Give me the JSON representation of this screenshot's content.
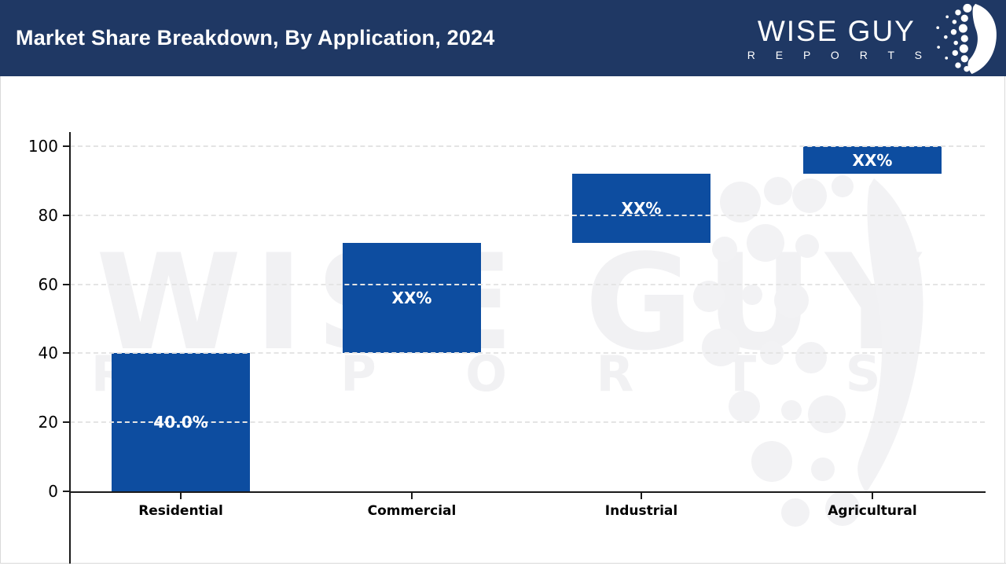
{
  "header": {
    "title": "Market Share Breakdown, By Application, 2024",
    "logo": {
      "line1": "WISE GUY",
      "line2": "R E P O R T S"
    }
  },
  "watermark": {
    "line1": "WISE GUY",
    "line2": "R E P O R T S"
  },
  "colors": {
    "header_bg": "#1f3864",
    "bar": "#0d4da0",
    "gridline": "#e4e4e4",
    "axis": "#1a1a1a",
    "bar_label": "#ffffff",
    "watermark": "#f1f1f3",
    "frame": "#d9d9d9"
  },
  "chart_data": {
    "type": "bar",
    "subtype": "waterfall",
    "title": "Market Share Breakdown, By Application, 2024",
    "categories": [
      "Residential",
      "Commercial",
      "Industrial",
      "Agricultural"
    ],
    "segments": [
      {
        "category": "Residential",
        "start": 0,
        "end": 40,
        "label": "40.0%"
      },
      {
        "category": "Commercial",
        "start": 40,
        "end": 72,
        "label": "XX%"
      },
      {
        "category": "Industrial",
        "start": 72,
        "end": 92,
        "label": "XX%"
      },
      {
        "category": "Agricultural",
        "start": 92,
        "end": 100,
        "label": "XX%"
      }
    ],
    "xlabel": "",
    "ylabel": "",
    "y_ticks": [
      0,
      20,
      40,
      60,
      80,
      100
    ],
    "ylim": [
      0,
      104
    ],
    "grid": "horizontal-dashed",
    "legend": "none"
  }
}
